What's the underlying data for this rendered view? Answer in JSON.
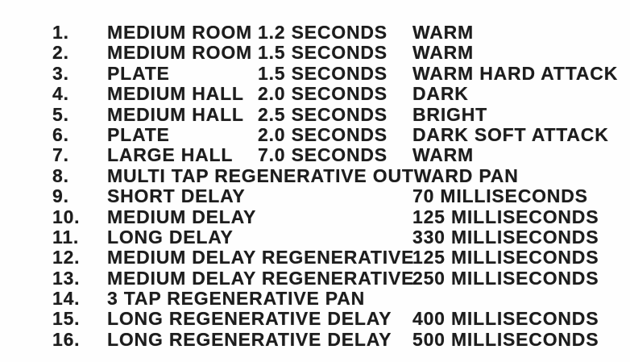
{
  "page": {
    "background_color": "#fefefe",
    "text_color": "#1d1d1d"
  },
  "table": {
    "description": "numbered-preset-list",
    "rows": [
      {
        "number": "1.",
        "name": "MEDIUM ROOM",
        "time": "1.2 SECONDS",
        "character": "WARM"
      },
      {
        "number": "2.",
        "name": "MEDIUM ROOM",
        "time": "1.5 SECONDS",
        "character": "WARM"
      },
      {
        "number": "3.",
        "name": "PLATE",
        "time": "1.5 SECONDS",
        "character": "WARM HARD ATTACK"
      },
      {
        "number": "4.",
        "name": "MEDIUM HALL",
        "time": "2.0 SECONDS",
        "character": "DARK"
      },
      {
        "number": "5.",
        "name": "MEDIUM HALL",
        "time": "2.5 SECONDS",
        "character": "BRIGHT"
      },
      {
        "number": "6.",
        "name": "PLATE",
        "time": "2.0 SECONDS",
        "character": "DARK SOFT ATTACK"
      },
      {
        "number": "7.",
        "name": "LARGE HALL",
        "time": "7.0 SECONDS",
        "character": "WARM"
      },
      {
        "number": "8.",
        "name": "MULTI TAP REGENERATIVE OUTWARD PAN",
        "time": "",
        "character": ""
      },
      {
        "number": "9.",
        "name": "SHORT DELAY",
        "time": "",
        "character": "70 MILLISECONDS"
      },
      {
        "number": "10.",
        "name": "MEDIUM DELAY",
        "time": "",
        "character": "125 MILLISECONDS"
      },
      {
        "number": "11.",
        "name": "LONG DELAY",
        "time": "",
        "character": "330 MILLISECONDS"
      },
      {
        "number": "12.",
        "name": "MEDIUM DELAY REGENERATIVE",
        "time": "",
        "character": "125 MILLISECONDS"
      },
      {
        "number": "13.",
        "name": "MEDIUM DELAY REGENERATIVE",
        "time": "",
        "character": "250 MILLISECONDS"
      },
      {
        "number": "14.",
        "name": "3 TAP REGENERATIVE PAN",
        "time": "",
        "character": ""
      },
      {
        "number": "15.",
        "name": "LONG REGENERATIVE DELAY",
        "time": "",
        "character": "400 MILLISECONDS"
      },
      {
        "number": "16.",
        "name": "LONG REGENERATIVE DELAY",
        "time": "",
        "character": "500 MILLISECONDS"
      }
    ]
  }
}
